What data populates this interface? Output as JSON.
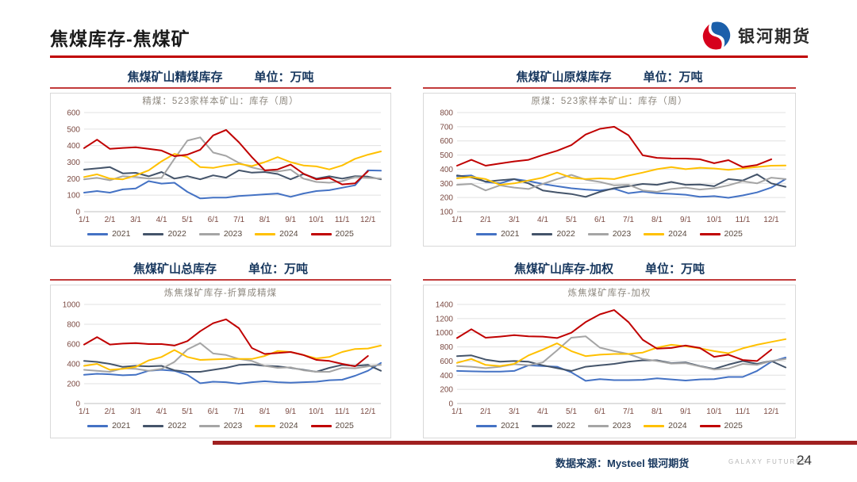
{
  "page": {
    "title": "焦煤库存-焦煤矿",
    "logo_text": "银河期货",
    "footer": {
      "source": "数据来源：Mysteel 银河期货",
      "brand": "GALAXY FUTURES",
      "page_number": "24"
    }
  },
  "colors": {
    "accent_red": "#C00000",
    "panel_rule_red": "#C23B3B",
    "footer_rule_red": "#A02020",
    "header_navy": "#17375E",
    "logo_blue": "#1B5FAA",
    "logo_red": "#D6001C"
  },
  "panels": [
    {
      "title": "焦煤矿山精煤库存",
      "unit": "单位：万吨"
    },
    {
      "title": "焦煤矿山原煤库存",
      "unit": "单位：万吨"
    },
    {
      "title": "焦煤矿山总库存",
      "unit": "单位：万吨"
    },
    {
      "title": "焦煤矿山库存-加权",
      "unit": "单位：万吨"
    }
  ],
  "chart_data": [
    {
      "type": "line",
      "title": "精煤：523家样本矿山：库存（周）",
      "x_unit": "semi-monthly, 1/1–12/15",
      "x_tick_labels": [
        "1/1",
        "2/1",
        "3/1",
        "4/1",
        "5/1",
        "6/1",
        "7/1",
        "8/1",
        "9/1",
        "10/1",
        "11/1",
        "12/1"
      ],
      "x_count": 24,
      "ylim": [
        0,
        600
      ],
      "yticks": [
        0,
        100,
        200,
        300,
        400,
        500,
        600
      ],
      "grid": true,
      "legend_position": "bottom",
      "series": [
        {
          "name": "2021",
          "color": "#4472C4",
          "values": [
            115,
            125,
            115,
            135,
            140,
            185,
            170,
            175,
            120,
            80,
            85,
            85,
            95,
            100,
            105,
            110,
            90,
            110,
            125,
            130,
            145,
            160,
            250,
            248
          ]
        },
        {
          "name": "2022",
          "color": "#44546A",
          "values": [
            255,
            262,
            270,
            232,
            235,
            214,
            240,
            200,
            215,
            196,
            220,
            206,
            250,
            236,
            240,
            228,
            196,
            228,
            200,
            214,
            200,
            215,
            212,
            196
          ]
        },
        {
          "name": "2023",
          "color": "#A5A5A5",
          "values": [
            196,
            205,
            190,
            215,
            210,
            200,
            205,
            320,
            430,
            450,
            358,
            338,
            295,
            268,
            250,
            243,
            255,
            200,
            180,
            175,
            185,
            210,
            205,
            200
          ]
        },
        {
          "name": "2024",
          "color": "#FFC000",
          "values": [
            210,
            226,
            200,
            196,
            220,
            250,
            305,
            350,
            330,
            270,
            265,
            280,
            290,
            276,
            300,
            330,
            300,
            280,
            274,
            256,
            280,
            320,
            345,
            365
          ]
        },
        {
          "name": "2025",
          "color": "#C00000",
          "values": [
            385,
            436,
            380,
            386,
            390,
            380,
            370,
            336,
            345,
            375,
            462,
            495,
            420,
            330,
            250,
            256,
            285,
            230,
            196,
            205,
            165,
            172,
            245
          ]
        }
      ]
    },
    {
      "type": "line",
      "title": "原煤：523家样本矿山：库存（周）",
      "x_unit": "semi-monthly, 1/1–12/15",
      "x_tick_labels": [
        "1/1",
        "2/1",
        "3/1",
        "4/1",
        "5/1",
        "6/1",
        "7/1",
        "8/1",
        "9/1",
        "10/1",
        "11/1",
        "12/1"
      ],
      "x_count": 24,
      "ylim": [
        100,
        800
      ],
      "yticks": [
        100,
        200,
        300,
        400,
        500,
        600,
        700,
        800
      ],
      "grid": true,
      "legend_position": "bottom",
      "series": [
        {
          "name": "2021",
          "color": "#4472C4",
          "values": [
            350,
            356,
            310,
            300,
            330,
            316,
            296,
            280,
            265,
            256,
            250,
            262,
            230,
            242,
            230,
            226,
            220,
            205,
            210,
            198,
            215,
            236,
            270,
            330
          ]
        },
        {
          "name": "2022",
          "color": "#44546A",
          "values": [
            356,
            342,
            312,
            322,
            330,
            300,
            250,
            236,
            225,
            205,
            240,
            266,
            280,
            296,
            290,
            310,
            290,
            292,
            280,
            330,
            320,
            364,
            300,
            276
          ]
        },
        {
          "name": "2023",
          "color": "#A5A5A5",
          "values": [
            290,
            296,
            250,
            286,
            270,
            260,
            296,
            330,
            360,
            326,
            310,
            286,
            290,
            250,
            240,
            260,
            270,
            256,
            265,
            286,
            315,
            300,
            340,
            330
          ]
        },
        {
          "name": "2024",
          "color": "#FFC000",
          "values": [
            336,
            346,
            330,
            290,
            300,
            320,
            340,
            376,
            340,
            330,
            335,
            330,
            355,
            376,
            400,
            415,
            400,
            410,
            405,
            395,
            406,
            416,
            425,
            426
          ]
        },
        {
          "name": "2025",
          "color": "#C00000",
          "values": [
            425,
            466,
            425,
            440,
            455,
            466,
            500,
            530,
            570,
            645,
            685,
            700,
            640,
            498,
            480,
            476,
            475,
            470,
            442,
            464,
            415,
            430,
            470
          ]
        }
      ]
    },
    {
      "type": "line",
      "title": "炼焦煤矿库存-折算成精煤",
      "x_unit": "semi-monthly, 1/1–12/15",
      "x_tick_labels": [
        "1/1",
        "2/1",
        "3/1",
        "4/1",
        "5/1",
        "6/1",
        "7/1",
        "8/1",
        "9/1",
        "10/1",
        "11/1",
        "12/1"
      ],
      "x_count": 24,
      "ylim": [
        0,
        1000
      ],
      "yticks": [
        0,
        200,
        400,
        600,
        800,
        1000
      ],
      "grid": true,
      "legend_position": "bottom",
      "series": [
        {
          "name": "2021",
          "color": "#4472C4",
          "values": [
            290,
            300,
            295,
            285,
            290,
            330,
            340,
            330,
            290,
            205,
            220,
            215,
            200,
            215,
            225,
            215,
            210,
            215,
            220,
            235,
            240,
            280,
            330,
            410
          ]
        },
        {
          "name": "2022",
          "color": "#44546A",
          "values": [
            430,
            420,
            400,
            370,
            380,
            375,
            380,
            335,
            320,
            320,
            340,
            360,
            390,
            395,
            380,
            375,
            360,
            340,
            320,
            360,
            390,
            380,
            390,
            330
          ]
        },
        {
          "name": "2023",
          "color": "#A5A5A5",
          "values": [
            340,
            330,
            320,
            355,
            350,
            330,
            350,
            420,
            545,
            610,
            505,
            490,
            450,
            430,
            380,
            360,
            365,
            335,
            320,
            320,
            360,
            355,
            375,
            390
          ]
        },
        {
          "name": "2024",
          "color": "#FFC000",
          "values": [
            380,
            400,
            340,
            350,
            370,
            435,
            470,
            540,
            470,
            440,
            445,
            450,
            450,
            450,
            480,
            530,
            520,
            490,
            455,
            470,
            520,
            550,
            555,
            585
          ]
        },
        {
          "name": "2025",
          "color": "#C00000",
          "values": [
            595,
            670,
            595,
            605,
            610,
            600,
            600,
            585,
            630,
            730,
            810,
            850,
            760,
            560,
            500,
            510,
            520,
            490,
            440,
            430,
            400,
            375,
            480
          ]
        }
      ]
    },
    {
      "type": "line",
      "title": "炼焦煤矿库存-加权",
      "x_unit": "semi-monthly, 1/1–12/15",
      "x_tick_labels": [
        "1/1",
        "2/1",
        "3/1",
        "4/1",
        "5/1",
        "6/1",
        "7/1",
        "8/1",
        "9/1",
        "10/1",
        "11/1",
        "12/1"
      ],
      "x_count": 24,
      "ylim": [
        0,
        1400
      ],
      "yticks": [
        0,
        200,
        400,
        600,
        800,
        1000,
        1200,
        1400
      ],
      "grid": true,
      "legend_position": "bottom",
      "series": [
        {
          "name": "2021",
          "color": "#4472C4",
          "values": [
            460,
            455,
            450,
            450,
            460,
            540,
            530,
            520,
            440,
            320,
            345,
            330,
            330,
            335,
            355,
            340,
            325,
            340,
            345,
            375,
            375,
            460,
            590,
            650
          ]
        },
        {
          "name": "2022",
          "color": "#44546A",
          "values": [
            670,
            680,
            620,
            590,
            600,
            590,
            540,
            500,
            460,
            520,
            540,
            560,
            590,
            610,
            610,
            570,
            580,
            530,
            490,
            550,
            600,
            560,
            600,
            510
          ]
        },
        {
          "name": "2023",
          "color": "#A5A5A5",
          "values": [
            530,
            520,
            500,
            520,
            555,
            540,
            580,
            750,
            930,
            950,
            790,
            740,
            700,
            630,
            600,
            565,
            570,
            525,
            480,
            495,
            560,
            545,
            600,
            630
          ]
        },
        {
          "name": "2024",
          "color": "#FFC000",
          "values": [
            575,
            630,
            545,
            530,
            560,
            680,
            760,
            850,
            740,
            670,
            690,
            700,
            700,
            720,
            790,
            830,
            810,
            780,
            740,
            710,
            780,
            830,
            870,
            910
          ]
        },
        {
          "name": "2025",
          "color": "#C00000",
          "values": [
            925,
            1050,
            930,
            945,
            965,
            950,
            945,
            925,
            1000,
            1150,
            1260,
            1320,
            1150,
            900,
            775,
            785,
            820,
            785,
            660,
            690,
            615,
            600,
            760
          ]
        }
      ]
    }
  ]
}
